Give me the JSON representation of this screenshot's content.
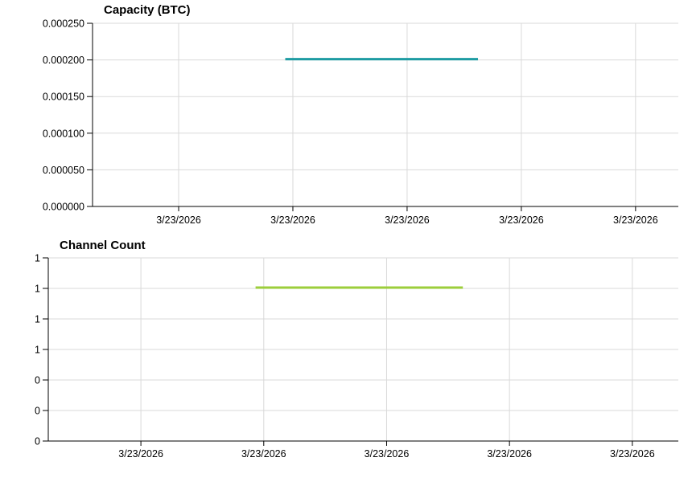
{
  "panel": {
    "background_color": "#ffffff",
    "grid_color": "#d9d9d9",
    "axis_color": "#000000",
    "text_color": "#000000"
  },
  "chart_data": [
    {
      "type": "line",
      "title": "Capacity (BTC)",
      "xlabel": "",
      "ylabel": "",
      "ylim": [
        0,
        0.00025
      ],
      "grid": true,
      "legend": "none",
      "y_tick_labels": [
        "0.000250",
        "0.000200",
        "0.000150",
        "0.000100",
        "0.000050",
        "0.000000"
      ],
      "x_tick_labels": [
        "3/23/2026",
        "3/23/2026",
        "3/23/2026",
        "3/23/2026",
        "3/23/2026"
      ],
      "series": [
        {
          "name": "Capacity (BTC)",
          "color": "#1d9ba2",
          "x": [
            "3/23/2026",
            "3/23/2026"
          ],
          "values": [
            0.0002,
            0.0002
          ],
          "x_frac": [
            0.329,
            0.658
          ]
        }
      ]
    },
    {
      "type": "line",
      "title": "Channel Count",
      "xlabel": "",
      "ylabel": "",
      "ylim": [
        0,
        1.2
      ],
      "grid": true,
      "legend": "none",
      "y_tick_labels": [
        "1",
        "1",
        "1",
        "1",
        "0",
        "0",
        "0"
      ],
      "x_tick_labels": [
        "3/23/2026",
        "3/23/2026",
        "3/23/2026",
        "3/23/2026",
        "3/23/2026"
      ],
      "series": [
        {
          "name": "Channel Count",
          "color": "#9cce3b",
          "x": [
            "3/23/2026",
            "3/23/2026"
          ],
          "values": [
            1,
            1
          ],
          "x_frac": [
            0.329,
            0.658
          ]
        }
      ]
    }
  ]
}
